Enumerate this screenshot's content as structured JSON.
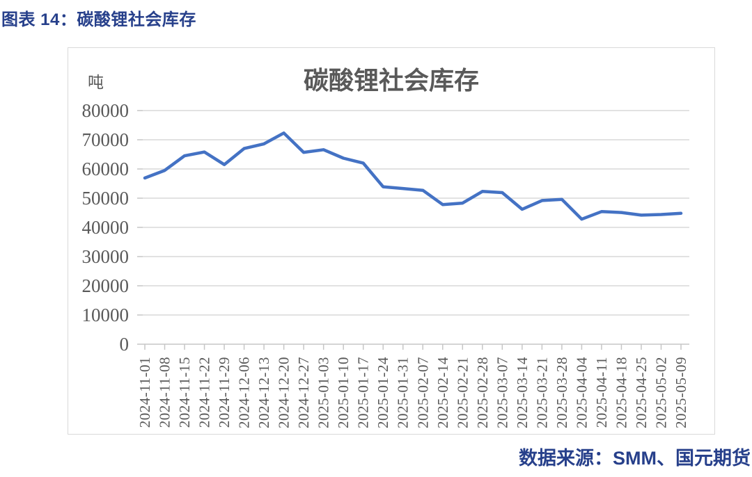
{
  "page": {
    "caption": "图表 14：碳酸锂社会库存",
    "source_note": "数据来源：SMM、国元期货"
  },
  "colors": {
    "caption_text": "#27408B",
    "line": "#4472C4",
    "axis_text": "#595959",
    "gridline": "#D9D9D9",
    "axis_line": "#C6C6C6",
    "chart_border": "#D9D9D9",
    "background": "#FFFFFF"
  },
  "chart_data": {
    "type": "line",
    "title": "碳酸锂社会库存",
    "unit_label": "吨",
    "xlabel": "",
    "ylabel": "",
    "ylim": [
      0,
      80000
    ],
    "ytick_interval": 10000,
    "yticks": [
      0,
      10000,
      20000,
      30000,
      40000,
      50000,
      60000,
      70000,
      80000
    ],
    "grid": true,
    "legend_position": "none",
    "x_tick_rotation": 90,
    "categories": [
      "2024-11-01",
      "2024-11-08",
      "2024-11-15",
      "2024-11-22",
      "2024-11-29",
      "2024-12-06",
      "2024-12-13",
      "2024-12-20",
      "2024-12-27",
      "2025-01-03",
      "2025-01-10",
      "2025-01-17",
      "2025-01-24",
      "2025-01-31",
      "2025-02-07",
      "2025-02-14",
      "2025-02-21",
      "2025-02-28",
      "2025-03-07",
      "2025-03-14",
      "2025-03-21",
      "2025-03-28",
      "2025-04-04",
      "2025-04-11",
      "2025-04-18",
      "2025-04-25",
      "2025-05-02",
      "2025-05-09"
    ],
    "series": [
      {
        "name": "碳酸锂社会库存",
        "color": "#4472C4",
        "values": [
          56900,
          59500,
          64500,
          65800,
          61500,
          67000,
          68600,
          72300,
          65700,
          66600,
          63700,
          62000,
          53900,
          53300,
          52700,
          47800,
          48300,
          52300,
          51900,
          46200,
          49200,
          49600,
          42800,
          45400,
          45100,
          44200,
          44400,
          44800
        ]
      }
    ]
  }
}
